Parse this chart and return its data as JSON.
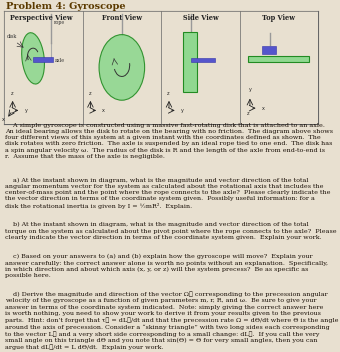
{
  "title": "Problem 4: Gyroscope",
  "title_color": "#5B3A00",
  "title_fontsize": 7.0,
  "bg_color": "#e8e0d0",
  "panel_bg": "#e8e0d0",
  "border_color": "#888888",
  "view_labels": [
    "Perspective View",
    "Front View",
    "Side View",
    "Top View"
  ],
  "view_label_fontsize": 5.0,
  "disk_color": "#90D890",
  "disk_edge_color": "#228B22",
  "axle_color": "#5555CC",
  "rope_color": "#999999",
  "body_text": "    A simple gyroscope is constructed using a massive fast-rotating disk that is attached to an axle.\nAn ideal bearing allows the disk to rotate on the bearing with no friction.  The diagram above shows\nfour different views of this system at a given instant with the coordinates defined as shown.  The\ndisk rotates with zero friction.  The axle is suspended by an ideal rope tied to one end.  The disk has\na spin angular velocity ω.  The radius of the disk is R and the length of the axle from end-to-end is\nr.  Assume that the mass of the axle is negligible.",
  "part_a": "    a) At the instant shown in diagram, what is the magnitude and vector direction of the total\nangular momentum vector for the system as calculated about the rotational axis that includes the\ncenter-of-mass point and the point where the rope connects to the axle?  Please clearly indicate the\nthe vector direction in terms of the coordinate system given.  Possibly useful information: for a\ndisk the rotational inertia is given by I = ½mR².  Explain.",
  "part_b": "    b) At the instant shown in diagram, what is the magnitude and vector direction of the total\ntorque on the system as calculated about the pivot point where the rope connects to the axle?  Please\nclearly indicate the vector direction in terms of the coordinate system given.  Explain your work.",
  "part_c": "    c) Based on your answers to (a) and (b) explain how the gyroscope will move?  Explain your\nanswer carefully: the correct answer alone is worth no points without an explanation.  Specifically,\nin which direction and about which axis (x, y, or z) will the system precess?  Be as specific as\npossible here.",
  "part_d": "    d) Derive the magnitude and direction of the vector Ω⃗ corresponding to the precession angular\nvelocity of the gyroscope as a function of given parameters m, r, R, and ω.  Be sure to give your\nanswer in terms of the coordinate system indicated.  Note: simply giving the correct answer here\nis worth nothing, you need to show your work to derive it from your results given to the previous\nparts.  Hint: don’t forget that τ⃗ = dL⃗/dt and that the precession rate Ω = dΘ/dt where Θ is the angle\naround the axis of precession. Consider a “skinny triangle” with two long sides each corresponding\nto the vector L⃗ and a very short side corresponding to a small change: dL⃗.  If you call the very\nsmall angle on this triangle dΘ and you note that sin(Θ) = Θ for very small angles, then you can\nargue that dL⃗/dt = L dΘ/dt.  Explain your work.",
  "text_fontsize": 4.6,
  "text_color": "#1a1008"
}
